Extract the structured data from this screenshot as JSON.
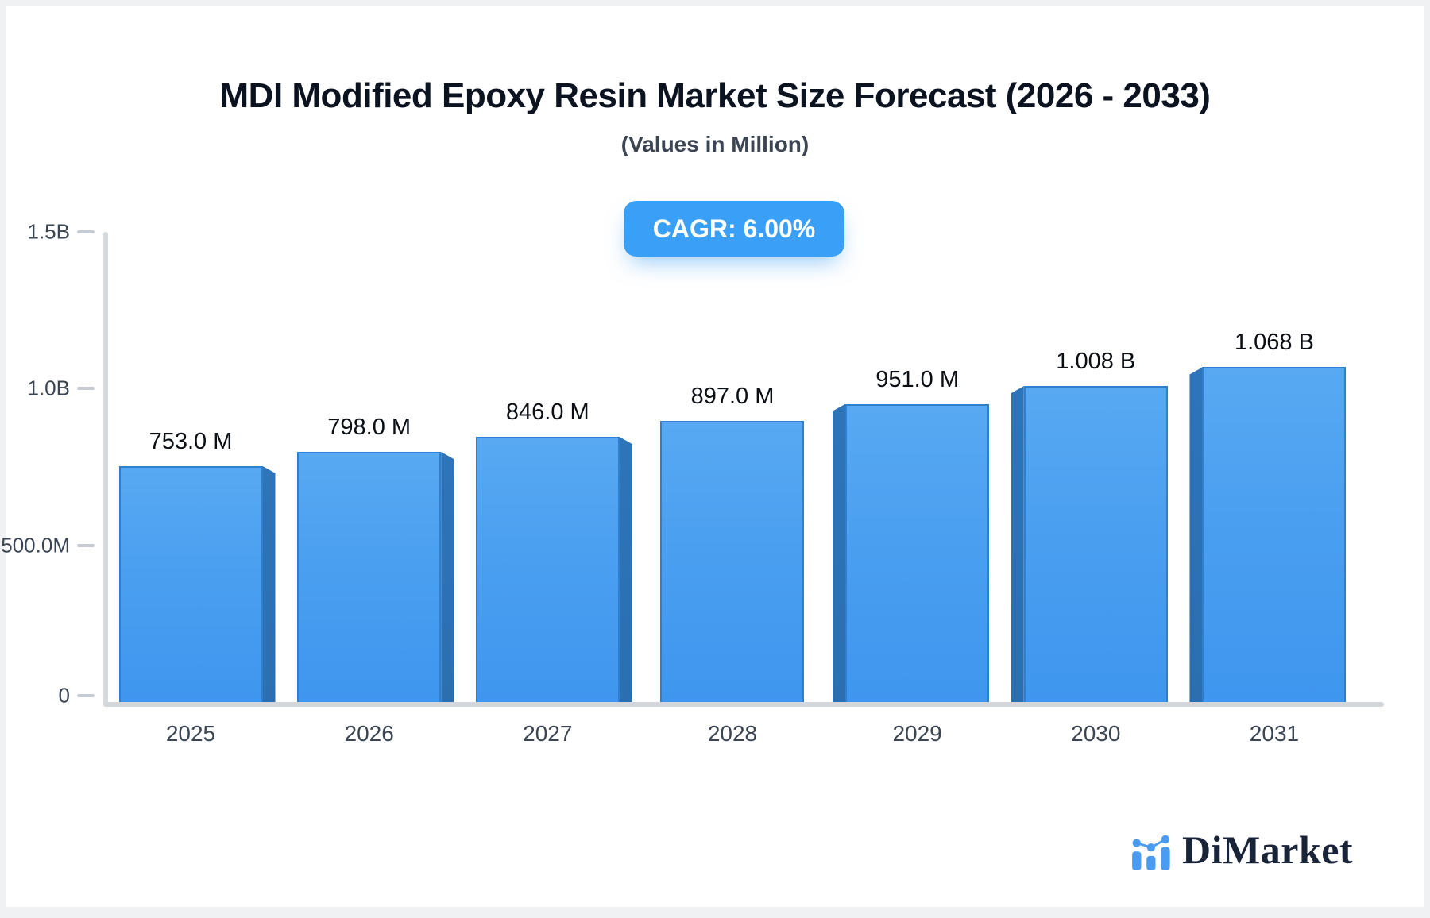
{
  "page": {
    "background": "#eff1f3",
    "card_background": "#ffffff"
  },
  "header": {
    "title": "MDI Modified Epoxy Resin Market Size Forecast (2026 - 2033)",
    "subtitle": "(Values in Million)"
  },
  "badge": {
    "label": "CAGR: 6.00%",
    "background": "#3aa0f7"
  },
  "chart_data": {
    "type": "bar",
    "title": "MDI Modified Epoxy Resin Market Size Forecast (2026 - 2033)",
    "subtitle": "(Values in Million)",
    "unit": "Million USD",
    "categories": [
      "2025",
      "2026",
      "2027",
      "2028",
      "2029",
      "2030",
      "2031"
    ],
    "values": [
      753,
      798,
      846,
      897,
      951,
      1008,
      1068
    ],
    "value_labels": [
      "753.0 M",
      "798.0 M",
      "846.0 M",
      "897.0 M",
      "951.0 M",
      "1.008 B",
      "1.068 B"
    ],
    "cagr": "6.00%",
    "xlabel": "",
    "ylabel": "",
    "ylim": [
      0,
      1500
    ],
    "yticks": [
      {
        "label": "1.5B",
        "value": 1500
      },
      {
        "label": "1.0B",
        "value": 1000
      },
      {
        "label": "500.0M",
        "value": 500
      },
      {
        "label": "0",
        "value": 0
      }
    ],
    "grid": false,
    "legend": false,
    "bar_face_color_top": "#58a9f2",
    "bar_face_color_bottom": "#3f96ee",
    "bar_side_color": "#2d74b9",
    "bar_border_color": "#2e80cf",
    "axis_color": "#d6dade"
  },
  "footer": {
    "brand": "DiMarket",
    "brand_color": "#1a2439",
    "logo_icon": "bar-chart-logo-icon",
    "logo_icon_color": "#499cf1"
  }
}
